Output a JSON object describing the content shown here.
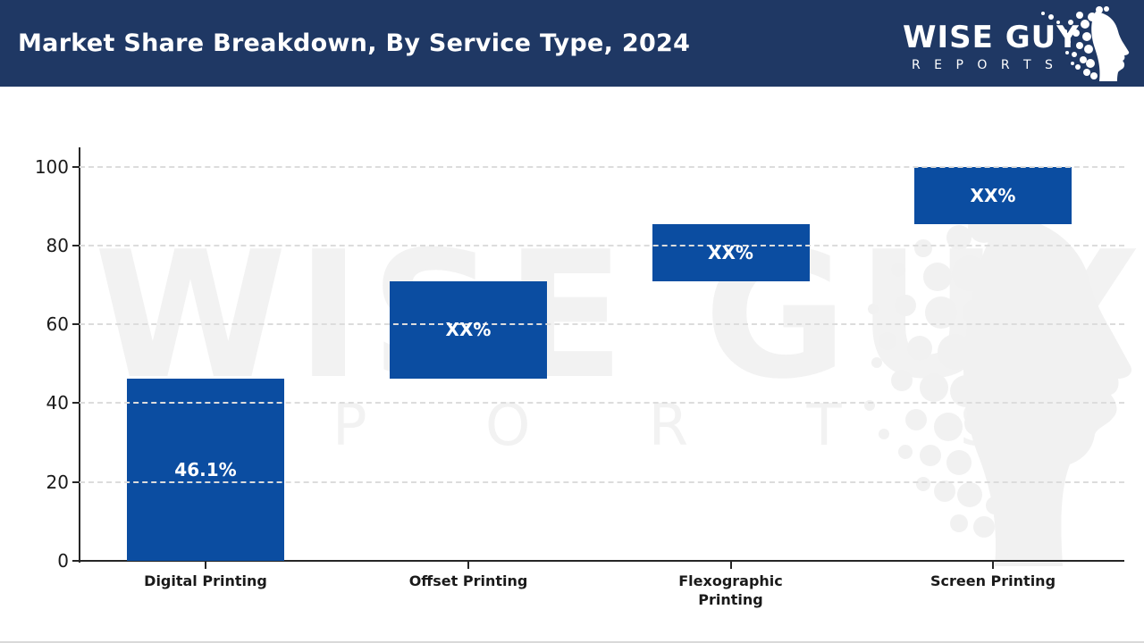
{
  "header": {
    "title": "Market Share Breakdown, By Service Type, 2024",
    "logo": {
      "name": "WISE GUY",
      "tagline": "R E P O R T S"
    }
  },
  "watermark": {
    "wordmark": "WISE GUY",
    "tagline": "P O R T S"
  },
  "chart_data": {
    "type": "bar",
    "subtype": "waterfall",
    "title": "Market Share Breakdown, By Service Type, 2024",
    "categories": [
      "Digital Printing",
      "Offset Printing",
      "Flexographic\nPrinting",
      "Screen Printing"
    ],
    "bars": [
      {
        "category": "Digital Printing",
        "start": 0,
        "end": 46.1,
        "label": "46.1%"
      },
      {
        "category": "Offset Printing",
        "start": 46.1,
        "end": 71,
        "label": "XX%"
      },
      {
        "category": "Flexographic Printing",
        "start": 71,
        "end": 85.5,
        "label": "XX%"
      },
      {
        "category": "Screen Printing",
        "start": 85.5,
        "end": 100,
        "label": "XX%"
      }
    ],
    "xlabel": "",
    "ylabel": "",
    "ylim": [
      0,
      100
    ],
    "yticks": [
      0,
      20,
      40,
      60,
      80,
      100
    ],
    "grid": "horizontal-dashed",
    "legend": "none",
    "bar_color": "#0b4da1",
    "bar_label_color": "#ffffff",
    "header_color": "#1f3864"
  }
}
